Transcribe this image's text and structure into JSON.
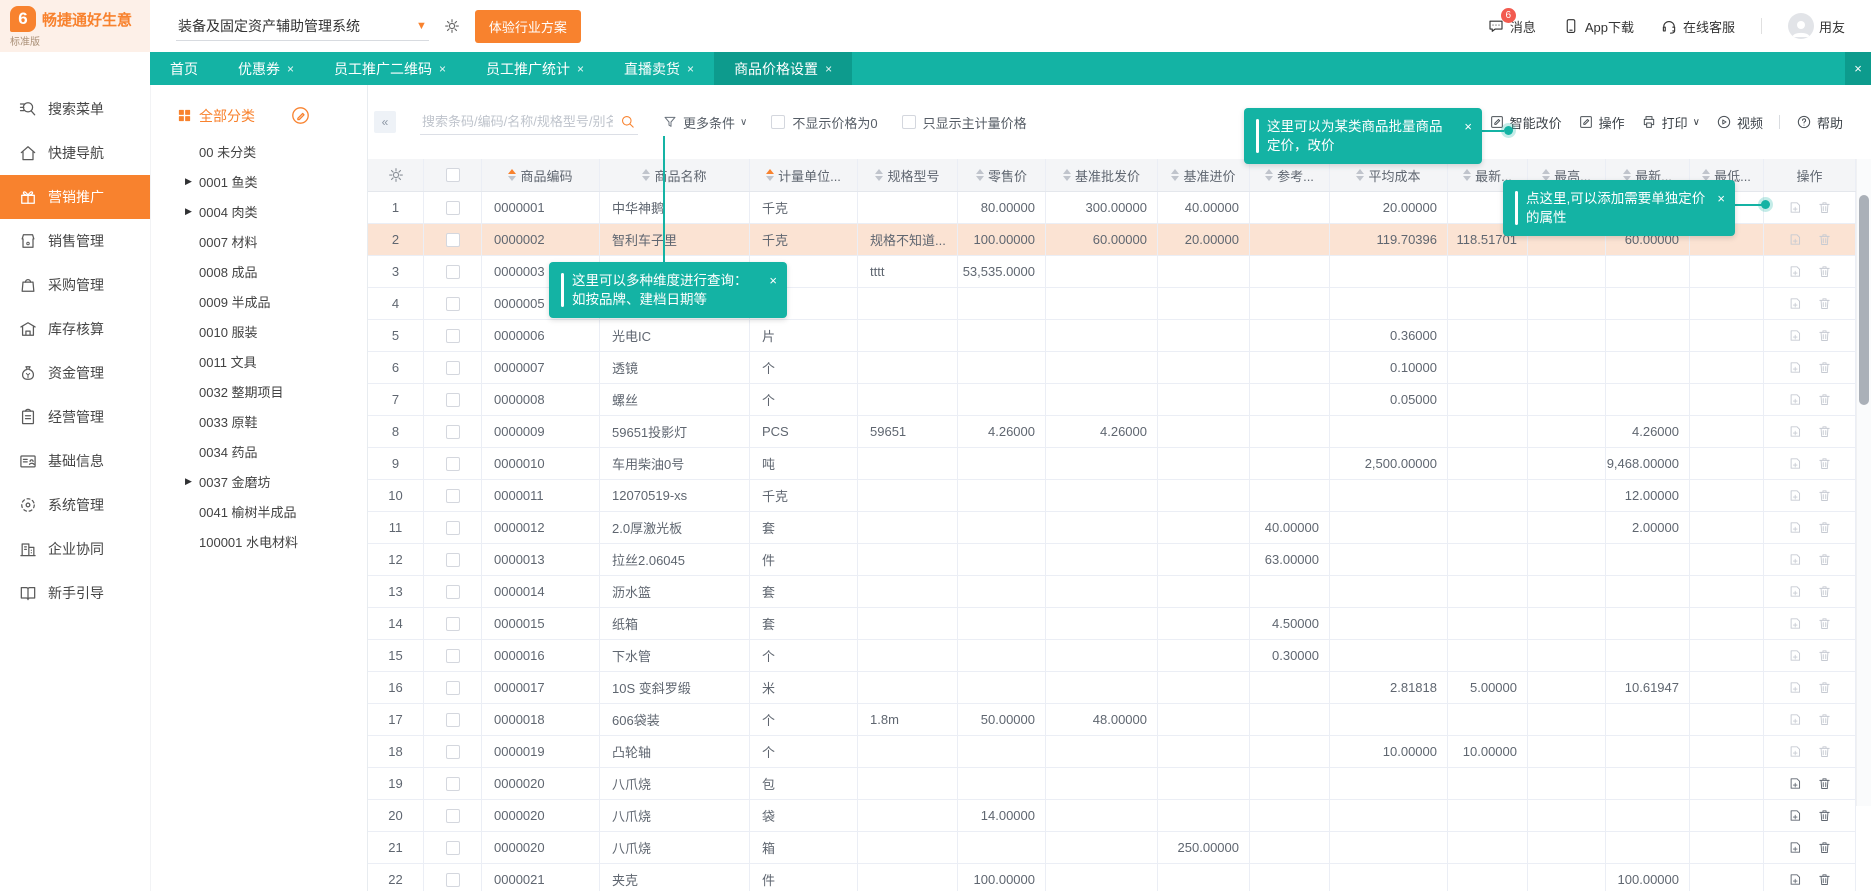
{
  "colors": {
    "teal": "#14b3a4",
    "teal_dark": "#0d9b8d",
    "orange": "#f8822e",
    "row_highlight": "#fbe3d3",
    "badge_red": "#f25b50"
  },
  "topbar": {
    "logo_title": "畅捷通好生意",
    "logo_subtitle": "标准版",
    "system_select": "装备及固定资产辅助管理系统",
    "trial_button": "体验行业方案",
    "messages_label": "消息",
    "messages_badge": "6",
    "app_download_label": "App下载",
    "online_service_label": "在线客服",
    "user_name": "用友"
  },
  "tabbar": {
    "overflow_label": "×",
    "tabs": [
      {
        "label": "首页",
        "closable": false,
        "active": false
      },
      {
        "label": "优惠券",
        "closable": true,
        "active": false
      },
      {
        "label": "员工推广二维码",
        "closable": true,
        "active": false
      },
      {
        "label": "员工推广统计",
        "closable": true,
        "active": false
      },
      {
        "label": "直播卖货",
        "closable": true,
        "active": false
      },
      {
        "label": "商品价格设置",
        "closable": true,
        "active": true
      }
    ]
  },
  "sidebar": [
    {
      "label": "搜索菜单",
      "icon": "search-menu",
      "active": false
    },
    {
      "label": "快捷导航",
      "icon": "home",
      "active": false
    },
    {
      "label": "营销推广",
      "icon": "gift",
      "active": true
    },
    {
      "label": "销售管理",
      "icon": "shop",
      "active": false
    },
    {
      "label": "采购管理",
      "icon": "bag",
      "active": false
    },
    {
      "label": "库存核算",
      "icon": "warehouse",
      "active": false
    },
    {
      "label": "资金管理",
      "icon": "money",
      "active": false
    },
    {
      "label": "经营管理",
      "icon": "clipboard",
      "active": false
    },
    {
      "label": "基础信息",
      "icon": "idcard",
      "active": false
    },
    {
      "label": "系统管理",
      "icon": "system",
      "active": false
    },
    {
      "label": "企业协同",
      "icon": "org",
      "active": false
    },
    {
      "label": "新手引导",
      "icon": "guide",
      "active": false
    }
  ],
  "category_panel": {
    "title": "全部分类",
    "items": [
      {
        "label": "00 未分类",
        "caret": false
      },
      {
        "label": "0001 鱼类",
        "caret": true
      },
      {
        "label": "0004 肉类",
        "caret": true
      },
      {
        "label": "0007 材料",
        "caret": false
      },
      {
        "label": "0008 成品",
        "caret": false
      },
      {
        "label": "0009 半成品",
        "caret": false
      },
      {
        "label": "0010 服装",
        "caret": false
      },
      {
        "label": "0011 文具",
        "caret": false
      },
      {
        "label": "0032 整期项目",
        "caret": false
      },
      {
        "label": "0033 原鞋",
        "caret": false
      },
      {
        "label": "0034 药品",
        "caret": false
      },
      {
        "label": "0037 金磨坊",
        "caret": true
      },
      {
        "label": "0041 榆树半成品",
        "caret": false
      },
      {
        "label": "100001 水电材料",
        "caret": false
      }
    ]
  },
  "filters": {
    "search_placeholder": "搜索条码/编码/名称/规格型号/别名",
    "more_label": "更多条件",
    "checkbox1": "不显示价格为0",
    "checkbox2": "只显示主计量价格"
  },
  "toolbar": {
    "actions": [
      {
        "label": "智能改价",
        "icon": "edit-square",
        "caret": false,
        "divider_before": false
      },
      {
        "label": "操作",
        "icon": "edit-square",
        "caret": false,
        "divider_before": false
      },
      {
        "label": "打印",
        "icon": "printer",
        "caret": true,
        "divider_before": false
      },
      {
        "label": "视频",
        "icon": "play-circle",
        "caret": false,
        "divider_before": false
      },
      {
        "label": "帮助",
        "icon": "question-circle",
        "caret": false,
        "divider_before": true
      }
    ]
  },
  "tooltips": [
    {
      "text": "这里可以为某类商品批量商品定价，改价",
      "close": "×"
    },
    {
      "text": "点这里,可以添加需要单独定价的属性",
      "close": "×"
    },
    {
      "text": "这里可以多种维度进行查询：如按品牌、建档日期等",
      "close": "×"
    }
  ],
  "table": {
    "columns": [
      {
        "type": "gear",
        "label": "",
        "sort": null
      },
      {
        "type": "check",
        "label": "",
        "sort": null
      },
      {
        "type": "text",
        "label": "商品编码",
        "sort": "asc"
      },
      {
        "type": "text",
        "label": "商品名称",
        "sort": "both"
      },
      {
        "type": "text",
        "label": "计量单位...",
        "sort": "asc"
      },
      {
        "type": "text",
        "label": "规格型号",
        "sort": "both"
      },
      {
        "type": "text",
        "label": "零售价",
        "sort": "both"
      },
      {
        "type": "text",
        "label": "基准批发价",
        "sort": "both"
      },
      {
        "type": "text",
        "label": "基准进价",
        "sort": "both"
      },
      {
        "type": "text",
        "label": "参考...",
        "sort": "both"
      },
      {
        "type": "text",
        "label": "平均成本",
        "sort": "both"
      },
      {
        "type": "text",
        "label": "最新...",
        "sort": "both"
      },
      {
        "type": "text",
        "label": "最高...",
        "sort": "both"
      },
      {
        "type": "text",
        "label": "最新...",
        "sort": "both"
      },
      {
        "type": "text",
        "label": "最低...",
        "sort": "both"
      },
      {
        "type": "text",
        "label": "操作",
        "sort": null
      }
    ],
    "rows": [
      {
        "n": "1",
        "hl": false,
        "dark": false,
        "cells": [
          "0000001",
          "中华神鹅",
          "千克",
          "",
          "80.00000",
          "300.00000",
          "40.00000",
          "",
          "20.00000",
          "",
          "",
          "",
          ""
        ]
      },
      {
        "n": "2",
        "hl": true,
        "dark": false,
        "cells": [
          "0000002",
          "智利车子里",
          "千克",
          "规格不知道...",
          "100.00000",
          "60.00000",
          "20.00000",
          "",
          "119.70396",
          "118.51701",
          "",
          "60.00000",
          ""
        ]
      },
      {
        "n": "3",
        "hl": false,
        "dark": false,
        "cells": [
          "0000003",
          "",
          "",
          "tttt",
          "53,535.0000",
          "",
          "",
          "",
          "",
          "",
          "",
          "",
          ""
        ]
      },
      {
        "n": "4",
        "hl": false,
        "dark": false,
        "cells": [
          "0000005",
          "",
          "",
          "",
          "",
          "",
          "",
          "",
          "",
          "",
          "",
          "",
          ""
        ]
      },
      {
        "n": "5",
        "hl": false,
        "dark": false,
        "cells": [
          "0000006",
          "光电IC",
          "片",
          "",
          "",
          "",
          "",
          "",
          "0.36000",
          "",
          "",
          "",
          ""
        ]
      },
      {
        "n": "6",
        "hl": false,
        "dark": false,
        "cells": [
          "0000007",
          "透镜",
          "个",
          "",
          "",
          "",
          "",
          "",
          "0.10000",
          "",
          "",
          "",
          ""
        ]
      },
      {
        "n": "7",
        "hl": false,
        "dark": false,
        "cells": [
          "0000008",
          "螺丝",
          "个",
          "",
          "",
          "",
          "",
          "",
          "0.05000",
          "",
          "",
          "",
          ""
        ]
      },
      {
        "n": "8",
        "hl": false,
        "dark": false,
        "cells": [
          "0000009",
          "59651投影灯",
          "PCS",
          "59651",
          "4.26000",
          "4.26000",
          "",
          "",
          "",
          "",
          "",
          "4.26000",
          ""
        ]
      },
      {
        "n": "9",
        "hl": false,
        "dark": false,
        "cells": [
          "0000010",
          "车用柴油0号",
          "吨",
          "",
          "",
          "",
          "",
          "",
          "2,500.00000",
          "",
          "",
          "9,468.00000",
          ""
        ]
      },
      {
        "n": "10",
        "hl": false,
        "dark": false,
        "cells": [
          "0000011",
          "12070519-xs",
          "千克",
          "",
          "",
          "",
          "",
          "",
          "",
          "",
          "",
          "12.00000",
          ""
        ]
      },
      {
        "n": "11",
        "hl": false,
        "dark": false,
        "cells": [
          "0000012",
          "2.0厚激光板",
          "套",
          "",
          "",
          "",
          "",
          "40.00000",
          "",
          "",
          "",
          "2.00000",
          ""
        ]
      },
      {
        "n": "12",
        "hl": false,
        "dark": false,
        "cells": [
          "0000013",
          "拉丝2.06045",
          "件",
          "",
          "",
          "",
          "",
          "63.00000",
          "",
          "",
          "",
          "",
          ""
        ]
      },
      {
        "n": "13",
        "hl": false,
        "dark": false,
        "cells": [
          "0000014",
          "沥水篮",
          "套",
          "",
          "",
          "",
          "",
          "",
          "",
          "",
          "",
          "",
          ""
        ]
      },
      {
        "n": "14",
        "hl": false,
        "dark": false,
        "cells": [
          "0000015",
          "纸箱",
          "套",
          "",
          "",
          "",
          "",
          "4.50000",
          "",
          "",
          "",
          "",
          ""
        ]
      },
      {
        "n": "15",
        "hl": false,
        "dark": false,
        "cells": [
          "0000016",
          "下水管",
          "个",
          "",
          "",
          "",
          "",
          "0.30000",
          "",
          "",
          "",
          "",
          ""
        ]
      },
      {
        "n": "16",
        "hl": false,
        "dark": false,
        "cells": [
          "0000017",
          "10S 变斜罗缎",
          "米",
          "",
          "",
          "",
          "",
          "",
          "2.81818",
          "5.00000",
          "",
          "10.61947",
          ""
        ]
      },
      {
        "n": "17",
        "hl": false,
        "dark": false,
        "cells": [
          "0000018",
          "606袋装",
          "个",
          "1.8m",
          "50.00000",
          "48.00000",
          "",
          "",
          "",
          "",
          "",
          "",
          ""
        ]
      },
      {
        "n": "18",
        "hl": false,
        "dark": false,
        "cells": [
          "0000019",
          "凸轮轴",
          "个",
          "",
          "",
          "",
          "",
          "",
          "10.00000",
          "10.00000",
          "",
          "",
          ""
        ]
      },
      {
        "n": "19",
        "hl": false,
        "dark": true,
        "cells": [
          "0000020",
          "八爪烧",
          "包",
          "",
          "",
          "",
          "",
          "",
          "",
          "",
          "",
          "",
          ""
        ]
      },
      {
        "n": "20",
        "hl": false,
        "dark": true,
        "cells": [
          "0000020",
          "八爪烧",
          "袋",
          "",
          "14.00000",
          "",
          "",
          "",
          "",
          "",
          "",
          "",
          ""
        ]
      },
      {
        "n": "21",
        "hl": false,
        "dark": true,
        "cells": [
          "0000020",
          "八爪烧",
          "箱",
          "",
          "",
          "",
          "250.00000",
          "",
          "",
          "",
          "",
          "",
          ""
        ]
      },
      {
        "n": "22",
        "hl": false,
        "dark": true,
        "cells": [
          "0000021",
          "夹克",
          "件",
          "",
          "100.00000",
          "",
          "",
          "",
          "",
          "",
          "",
          "100.00000",
          ""
        ]
      }
    ]
  }
}
